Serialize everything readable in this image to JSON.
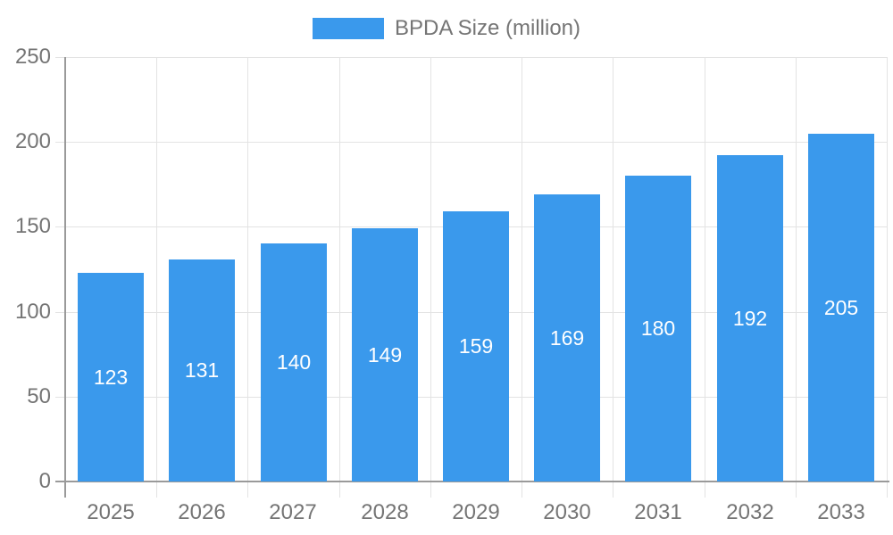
{
  "chart_data": {
    "type": "bar",
    "title": "",
    "xlabel": "",
    "ylabel": "",
    "categories": [
      "2025",
      "2026",
      "2027",
      "2028",
      "2029",
      "2030",
      "2031",
      "2032",
      "2033"
    ],
    "series": [
      {
        "name": "BPDA Size (million)",
        "values": [
          123,
          131,
          140,
          149,
          159,
          169,
          180,
          192,
          205
        ],
        "color": "#3a99ec"
      }
    ],
    "legend": {
      "position": "top",
      "entries": [
        "BPDA Size (million)"
      ]
    },
    "ylim": [
      0,
      250
    ],
    "yticks": [
      0,
      50,
      100,
      150,
      200,
      250
    ],
    "grid": true,
    "value_labels": {
      "show": true,
      "position": "inside-center",
      "color": "#ffffff"
    },
    "colors": {
      "bar": "#3a99ec",
      "axis": "#9a9a9a",
      "grid": "#e3e3e3",
      "tick_text": "#757575",
      "value_text": "#ffffff",
      "background": "#ffffff"
    }
  }
}
